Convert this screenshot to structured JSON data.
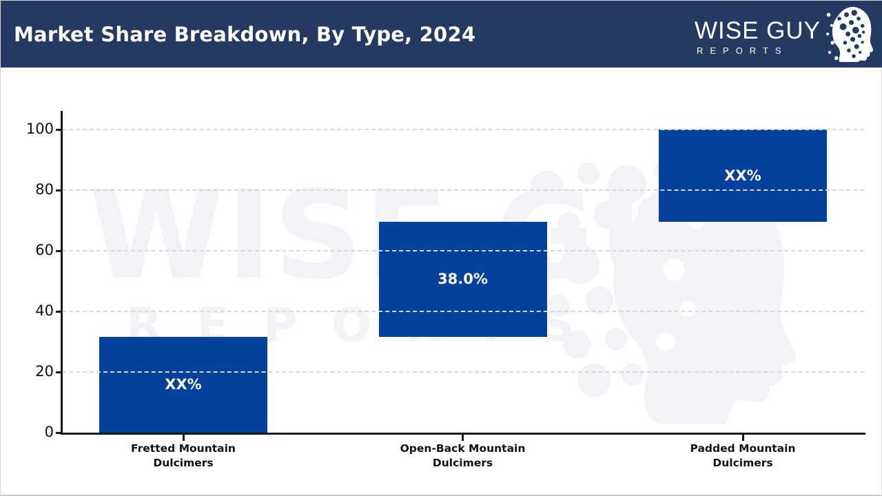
{
  "header": {
    "title": "Market Share Breakdown, By Type, 2024",
    "logo": {
      "line1": "WISE GUY",
      "line2": "REPORTS"
    }
  },
  "watermark": {
    "line1": "WISE GUY",
    "line2": "REPORTS"
  },
  "chart_data": {
    "type": "bar",
    "subtype": "waterfall-stacked-segments",
    "title": "Market Share Breakdown, By Type, 2024",
    "categories": [
      "Fretted Mountain Dulcimers",
      "Open-Back Mountain Dulcimers",
      "Padded Mountain Dulcimers"
    ],
    "categories_lines": [
      [
        "Fretted Mountain",
        "Dulcimers"
      ],
      [
        "Open-Back Mountain",
        "Dulcimers"
      ],
      [
        "Padded Mountain",
        "Dulcimers"
      ]
    ],
    "bar_labels": [
      "XX%",
      "38.0%",
      "XX%"
    ],
    "segments": [
      [
        0,
        31.6
      ],
      [
        31.6,
        69.6
      ],
      [
        69.6,
        100
      ]
    ],
    "values": [
      31.6,
      38.0,
      30.4
    ],
    "ylim": [
      0,
      100
    ],
    "yticks": [
      0,
      20,
      40,
      60,
      80,
      100
    ],
    "grid": "horizontal-dashed",
    "legend": "none",
    "bar_color": "#04419d",
    "bar_label_color": "#ffffff"
  },
  "colors": {
    "header_bg": "#243a63",
    "bar": "#04419d",
    "grid": "#d9d9d9",
    "axis": "#1a1a1a",
    "watermark": "#f2f3f6",
    "text": "#111111"
  }
}
